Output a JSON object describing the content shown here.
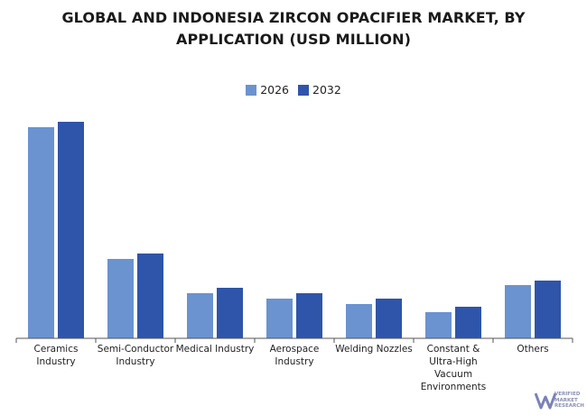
{
  "chart_data": {
    "type": "bar",
    "title_lines": [
      "GLOBAL AND INDONESIA ZIRCON OPACIFIER MARKET, BY",
      "APPLICATION (USD MILLION)"
    ],
    "categories": [
      [
        "Ceramics",
        "Industry"
      ],
      [
        "Semi-Conductor",
        "Industry"
      ],
      [
        "Medical Industry"
      ],
      [
        "Aerospace",
        "Industry"
      ],
      [
        "Welding Nozzles"
      ],
      [
        "Constant &",
        "Ultra-High",
        "Vacuum",
        "Environments"
      ],
      [
        "Others"
      ]
    ],
    "series": [
      {
        "name": "2026",
        "values": [
          234,
          88,
          50,
          44,
          38,
          29,
          59
        ],
        "color": "#6a93d0"
      },
      {
        "name": "2032",
        "values": [
          240,
          94,
          56,
          50,
          44,
          35,
          64
        ],
        "color": "#2f55aa"
      }
    ],
    "ylim": [
      0,
      250
    ],
    "grid": false,
    "legend_position": "top-center"
  },
  "logo": {
    "lines": [
      "VERIFIED",
      "MARKET",
      "RESEARCH"
    ]
  }
}
